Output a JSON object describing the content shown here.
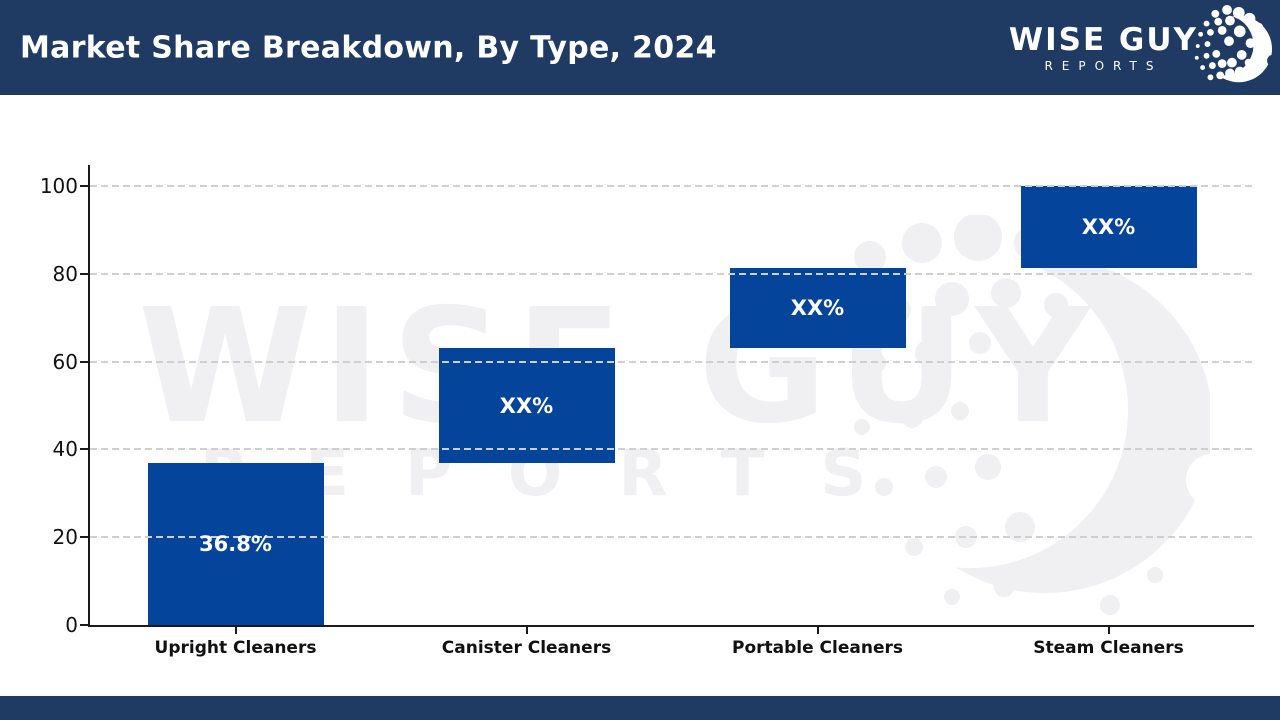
{
  "header": {
    "title": "Market Share Breakdown, By Type, 2024",
    "logo": {
      "line1": "WISE GUY",
      "line2": "REPORTS"
    }
  },
  "watermark": {
    "line1": "WISE GUY",
    "line2": "REPORTS"
  },
  "chart_data": {
    "type": "bar",
    "subtype": "floating-segment-waterfall",
    "title": "Market Share Breakdown, By Type, 2024",
    "categories": [
      "Upright Cleaners",
      "Canister Cleaners",
      "Portable Cleaners",
      "Steam Cleaners"
    ],
    "segments": [
      {
        "category": "Upright Cleaners",
        "start": 0,
        "end": 36.8,
        "label": "36.8%"
      },
      {
        "category": "Canister Cleaners",
        "start": 36.8,
        "end": 63.0,
        "label": "XX%"
      },
      {
        "category": "Portable Cleaners",
        "start": 63.0,
        "end": 81.3,
        "label": "XX%"
      },
      {
        "category": "Steam Cleaners",
        "start": 81.3,
        "end": 100.0,
        "label": "XX%"
      }
    ],
    "xlabel": "",
    "ylabel": "",
    "ylim": [
      0,
      100
    ],
    "yticks": [
      0,
      20,
      40,
      60,
      80,
      100
    ],
    "grid": "horizontal-dashed",
    "legend": "none",
    "bar_color": "#04449a",
    "bar_label_color": "#ffffff"
  },
  "colors": {
    "header_bg": "#1f3a63",
    "footer_bg": "#1f3a63",
    "bar_blue": "#04449a",
    "title_text": "#ffffff",
    "axis_text": "#111111",
    "gridline": "#cfcfcf",
    "watermark": "#f0f0f3"
  }
}
